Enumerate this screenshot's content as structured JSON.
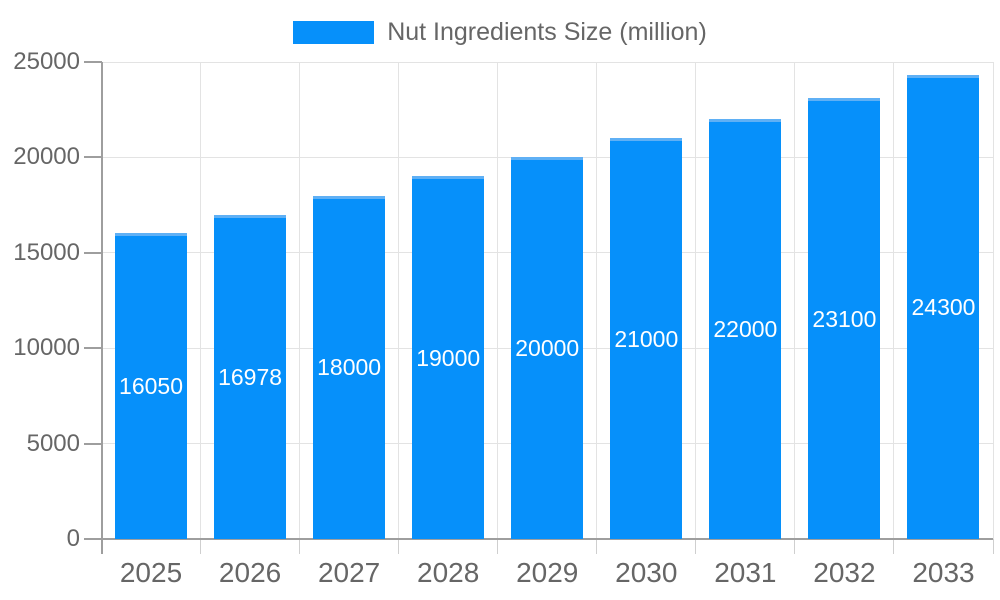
{
  "legend": {
    "label": "Nut Ingredients Size (million)"
  },
  "colors": {
    "bar": "#0690fa",
    "bar_border": "#5fb0f5",
    "grid": "#e3e3e3",
    "axis_line": "#9e9e9e",
    "tick": "#cfcfcf",
    "axis_text": "#666666",
    "bar_label_text": "#ffffff",
    "background": "#ffffff"
  },
  "chart_data": {
    "type": "bar",
    "title": "",
    "series_name": "Nut Ingredients Size (million)",
    "categories": [
      "2025",
      "2026",
      "2027",
      "2028",
      "2029",
      "2030",
      "2031",
      "2032",
      "2033"
    ],
    "values": [
      16050,
      16978,
      18000,
      19000,
      20000,
      21000,
      22000,
      23100,
      24300
    ],
    "xlabel": "",
    "ylabel": "",
    "ylim": [
      0,
      25000
    ],
    "yticks": [
      0,
      5000,
      10000,
      15000,
      20000,
      25000
    ],
    "grid": true,
    "legend_position": "top",
    "bar_value_labels": true
  }
}
